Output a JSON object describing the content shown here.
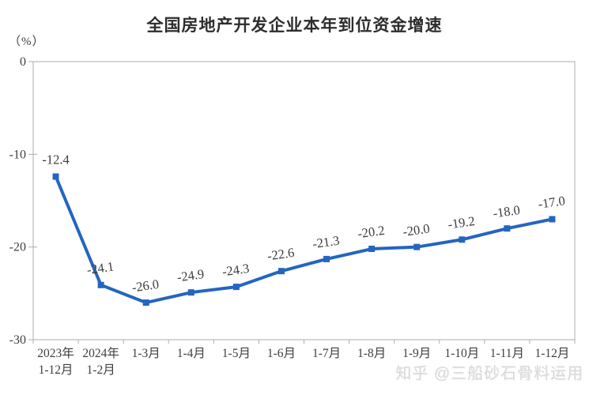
{
  "title": "全国房地产开发企业本年到位资金增速",
  "unit_label": "（%）",
  "watermark": "知乎 @三船砂石骨料运用",
  "colors": {
    "line": "#2465c1",
    "marker": "#2465c1",
    "axis": "#adadad",
    "y_tick_label": "#433c3a",
    "x_tick_label": "#3f3f3f",
    "data_label": "#3c3c3c",
    "title": "#2d2d2d",
    "watermark": "#d9d9d9",
    "background": "#ffffff"
  },
  "chart_data": {
    "type": "line",
    "title": "全国房地产开发企业本年到位资金增速",
    "ylabel": "（%）",
    "xlabel": "",
    "ylim": [
      -30,
      0
    ],
    "yticks": [
      "0",
      "-10",
      "-20",
      "-30"
    ],
    "grid": false,
    "legend_position": "none",
    "categories": [
      [
        "2023年",
        "1-12月"
      ],
      [
        "2024年",
        "1-2月"
      ],
      [
        "1-3月",
        ""
      ],
      [
        "1-4月",
        ""
      ],
      [
        "1-5月",
        ""
      ],
      [
        "1-6月",
        ""
      ],
      [
        "1-7月",
        ""
      ],
      [
        "1-8月",
        ""
      ],
      [
        "1-9月",
        ""
      ],
      [
        "1-10月",
        ""
      ],
      [
        "1-11月",
        ""
      ],
      [
        "1-12月",
        ""
      ]
    ],
    "series": [
      {
        "name": "本年到位资金增速",
        "values": [
          -12.4,
          -24.1,
          -26.0,
          -24.9,
          -24.3,
          -22.6,
          -21.3,
          -20.2,
          -20.0,
          -19.2,
          -18.0,
          -17.0
        ],
        "data_labels": [
          "-12.4",
          "-24.1",
          "-26.0",
          "-24.9",
          "-24.3",
          "-22.6",
          "-21.3",
          "-20.2",
          "-20.0",
          "-19.2",
          "-18.0",
          "-17.0"
        ]
      }
    ]
  }
}
